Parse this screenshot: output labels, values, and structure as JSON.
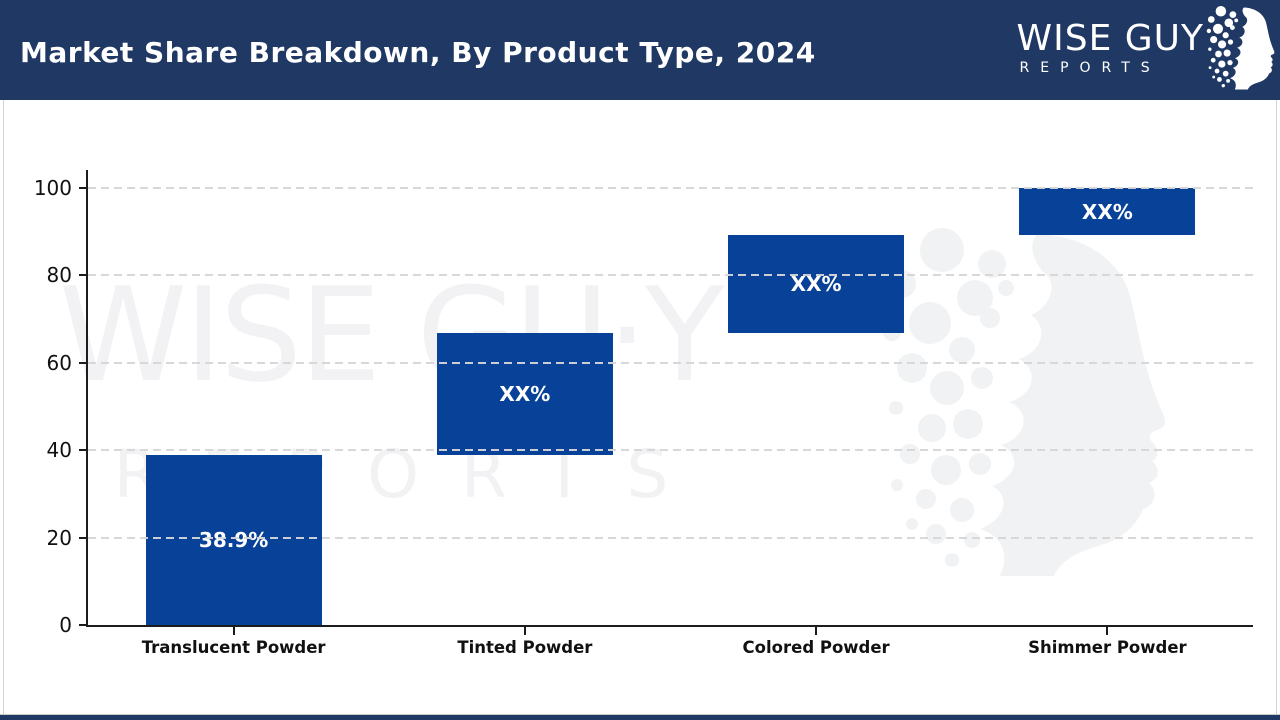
{
  "header": {
    "title": "Market Share Breakdown, By Product Type, 2024",
    "logo": {
      "line1": "WISE GUY",
      "line2": "REPORTS"
    }
  },
  "watermark": {
    "line1": "WISE GU·Y",
    "line2": "REPORTS"
  },
  "chart_data": {
    "type": "bar",
    "subtype": "waterfall-stacked-percentage",
    "title": "Market Share Breakdown, By Product Type, 2024",
    "categories": [
      "Translucent Powder",
      "Tinted Powder",
      "Colored Powder",
      "Shimmer Powder"
    ],
    "segments": [
      {
        "category": "Translucent Powder",
        "start": 0,
        "end": 38.9,
        "label": "38.9%"
      },
      {
        "category": "Tinted Powder",
        "start": 38.9,
        "end": 66.8,
        "label": "XX%"
      },
      {
        "category": "Colored Powder",
        "start": 66.8,
        "end": 89.2,
        "label": "XX%"
      },
      {
        "category": "Shimmer Powder",
        "start": 89.2,
        "end": 100,
        "label": "XX%"
      }
    ],
    "values": [
      38.9,
      27.9,
      22.4,
      10.8
    ],
    "yticks": [
      0,
      20,
      40,
      60,
      80,
      100
    ],
    "ylim": [
      0,
      100
    ],
    "xlabel": "",
    "ylabel": "",
    "grid": "horizontal-dashed",
    "legend": "none",
    "bar_color": "#084198",
    "bar_label_color": "#ffffff"
  },
  "colors": {
    "header_bg": "#1f3864",
    "footer_bg": "#1f3864",
    "bar": "#084198",
    "grid": "#d6d6d6",
    "axis": "#1c1c1c",
    "watermark": "#f2f2f4"
  }
}
